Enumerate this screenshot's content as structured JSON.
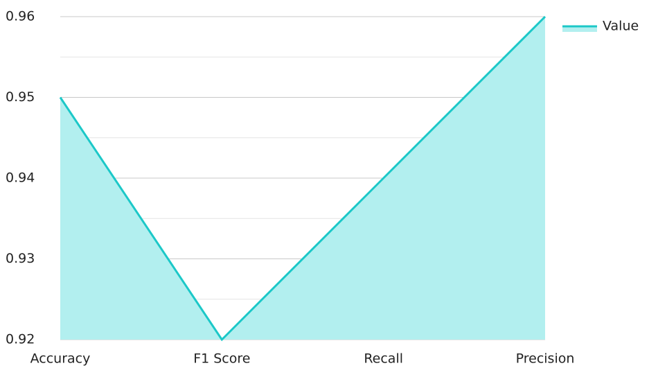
{
  "chart_data": {
    "type": "area",
    "categories": [
      "Accuracy",
      "F1 Score",
      "Recall",
      "Precision"
    ],
    "series": [
      {
        "name": "Value",
        "color": "#1cc8c8",
        "fill": "#b2efef",
        "values": [
          0.95,
          0.92,
          0.94,
          0.96
        ]
      }
    ],
    "ylim": [
      0.92,
      0.96
    ],
    "yticks": [
      0.92,
      0.93,
      0.94,
      0.95,
      0.96
    ],
    "yminorticks": [
      0.925,
      0.935,
      0.945,
      0.955
    ],
    "grid": true,
    "legend": "top-right"
  }
}
